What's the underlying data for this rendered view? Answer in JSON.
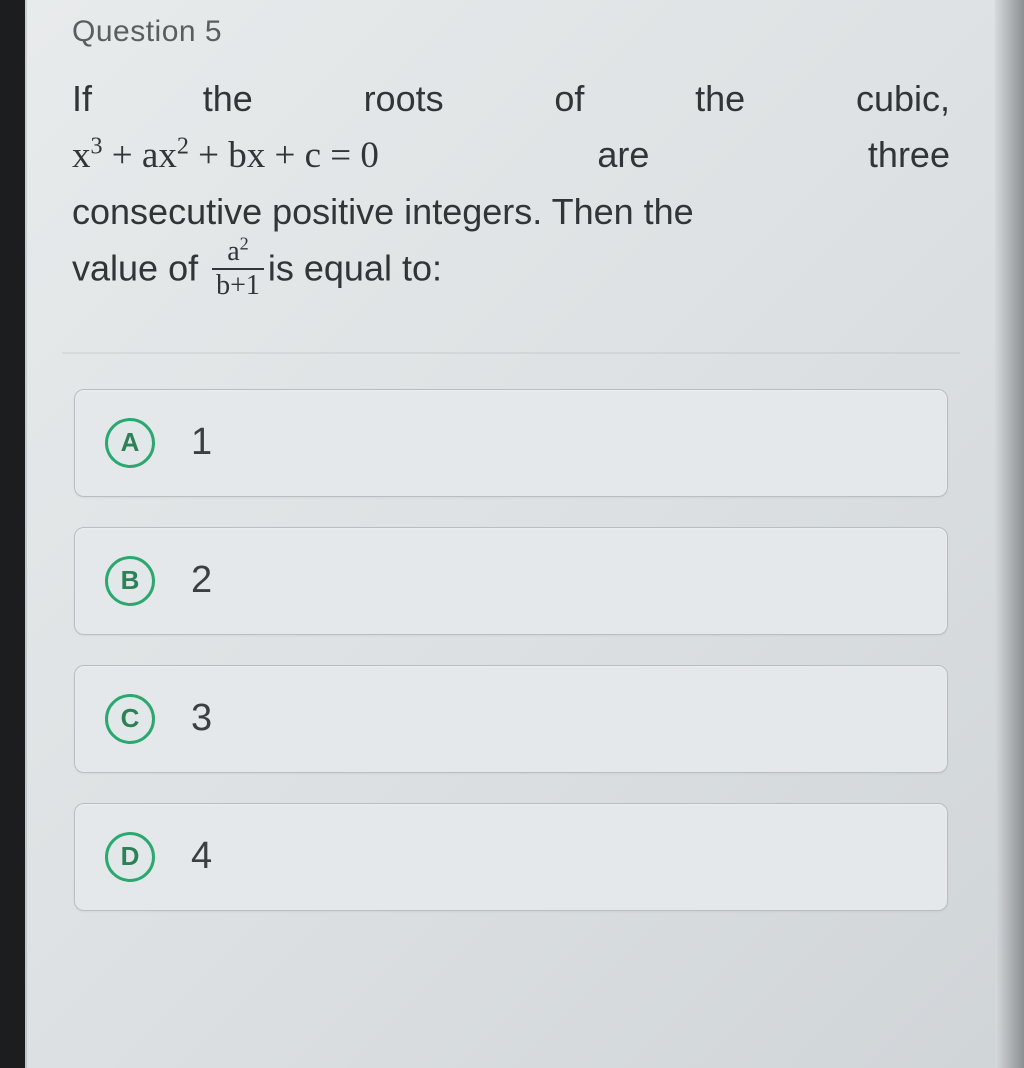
{
  "question": {
    "number_label": "Question 5",
    "line1_words": [
      "If",
      "the",
      "roots",
      "of",
      "the",
      "cubic,"
    ],
    "line2_equation_parts": {
      "pre": "x",
      "exp1": "3",
      "mid1": " + ax",
      "exp2": "2",
      "mid2": " + bx + c = 0"
    },
    "line2_words": [
      "are",
      "three"
    ],
    "line3_text": "consecutive positive integers. Then the",
    "line4_prefix": "value of ",
    "fraction": {
      "num_base": "a",
      "num_exp": "2",
      "den": "b+1"
    },
    "line4_suffix": "is equal to:"
  },
  "options": [
    {
      "letter": "A",
      "value": "1"
    },
    {
      "letter": "B",
      "value": "2"
    },
    {
      "letter": "C",
      "value": "3"
    },
    {
      "letter": "D",
      "value": "4"
    }
  ],
  "colors": {
    "badge_border": "#2ba86f",
    "badge_text": "#2e8157",
    "option_bg": "#e4e8ea",
    "option_border": "#b8bfc3",
    "page_bg": "#dde1e3",
    "text": "#323537"
  }
}
